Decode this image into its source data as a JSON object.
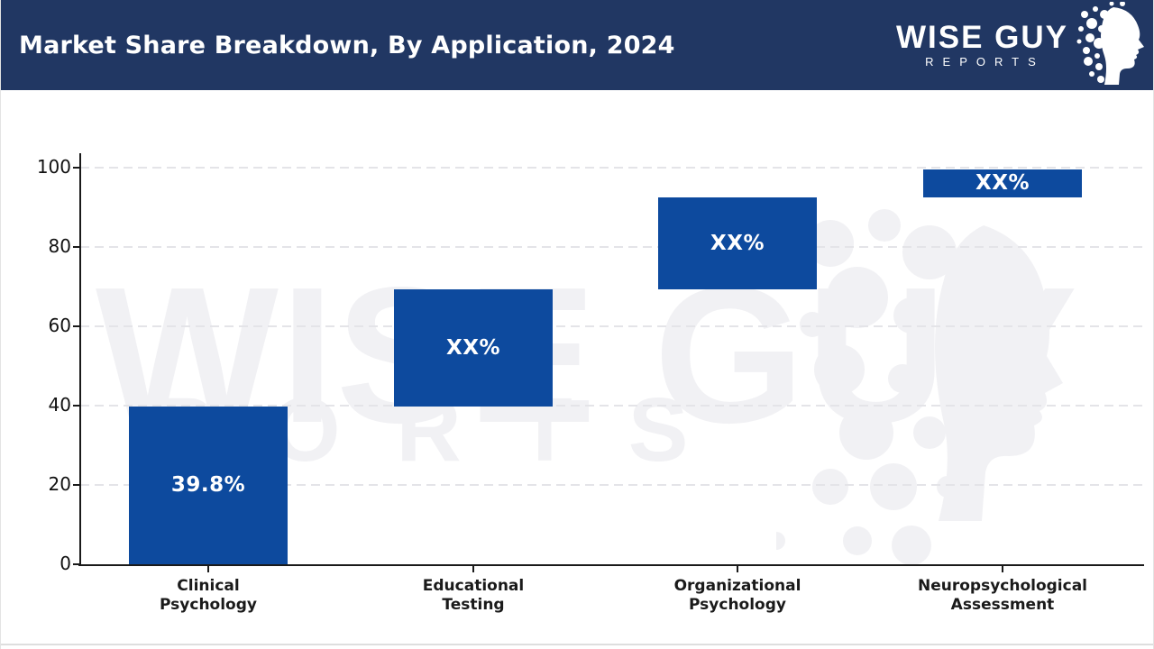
{
  "header": {
    "title": "Market Share Breakdown, By Application, 2024",
    "bg_color": "#213763",
    "brand": {
      "line1": "WISE GUY",
      "line2": "REPORTS"
    }
  },
  "watermark": {
    "line1": "WISE GUY",
    "line2": "PORTS"
  },
  "chart_data": {
    "type": "bar",
    "subtype": "waterfall",
    "title": "Market Share Breakdown, By Application, 2024",
    "categories": [
      [
        "Clinical",
        "Psychology"
      ],
      [
        "Educational",
        "Testing"
      ],
      [
        "Organizational",
        "Psychology"
      ],
      [
        "Neuropsychological",
        "Assessment"
      ]
    ],
    "segments": [
      {
        "label": "39.8%",
        "start": 0,
        "end": 39.8
      },
      {
        "label": "XX%",
        "start": 39.8,
        "end": 69.3
      },
      {
        "label": "XX%",
        "start": 69.3,
        "end": 92.5
      },
      {
        "label": "XX%",
        "start": 92.5,
        "end": 99.6
      }
    ],
    "yticks": [
      0,
      20,
      40,
      60,
      80,
      100
    ],
    "ylim": [
      0,
      103.5
    ],
    "bar_color": "#0d4a9e",
    "grid": "horizontal-dashed",
    "legend": "none",
    "xlabel": "",
    "ylabel": ""
  }
}
